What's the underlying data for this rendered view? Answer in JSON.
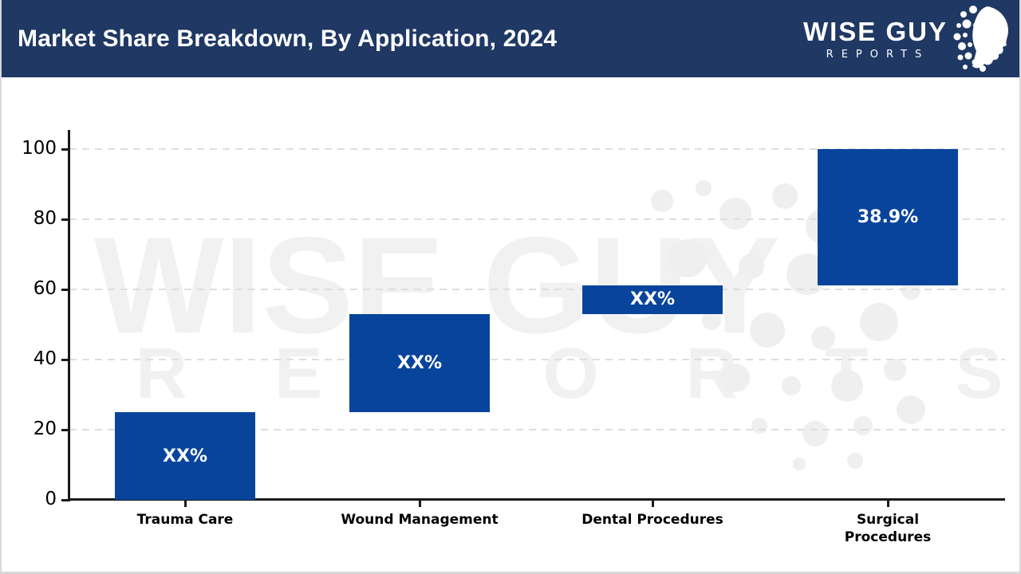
{
  "header": {
    "title": "Market Share Breakdown, By Application, 2024",
    "logo": {
      "line1": "WISE GUY",
      "line2": "REPORTS"
    }
  },
  "watermark": {
    "line1": "WISE GUY",
    "line2": "REPORTS",
    "line2_spaced": "R E P O R T S"
  },
  "chart_data": {
    "type": "bar",
    "subtype": "waterfall",
    "title": "Market Share Breakdown, By Application, 2024",
    "categories": [
      "Trauma Care",
      "Wound Management",
      "Dental Procedures",
      "Surgical\nProcedures"
    ],
    "segments": [
      {
        "category": "Trauma Care",
        "start": 0,
        "end": 25,
        "label": "XX%"
      },
      {
        "category": "Wound Management",
        "start": 25,
        "end": 53,
        "label": "XX%"
      },
      {
        "category": "Dental Procedures",
        "start": 53,
        "end": 61.1,
        "label": "XX%"
      },
      {
        "category": "Surgical Procedures",
        "start": 61.1,
        "end": 100,
        "label": "38.9%"
      }
    ],
    "yticks": [
      0,
      20,
      40,
      60,
      80,
      100
    ],
    "ylim": [
      0,
      100
    ],
    "xlabel": "",
    "ylabel": "",
    "grid": "horizontal-dashed",
    "legend": "none",
    "bar_color": "#08449c",
    "bar_label_color": "#ffffff"
  },
  "colors": {
    "header_bg": "#1f3864",
    "bar": "#08449c",
    "axis": "#1a1a1a",
    "grid": "#dedede",
    "watermark": "#f1f1f1",
    "frame_border": "#d9d9d9"
  }
}
